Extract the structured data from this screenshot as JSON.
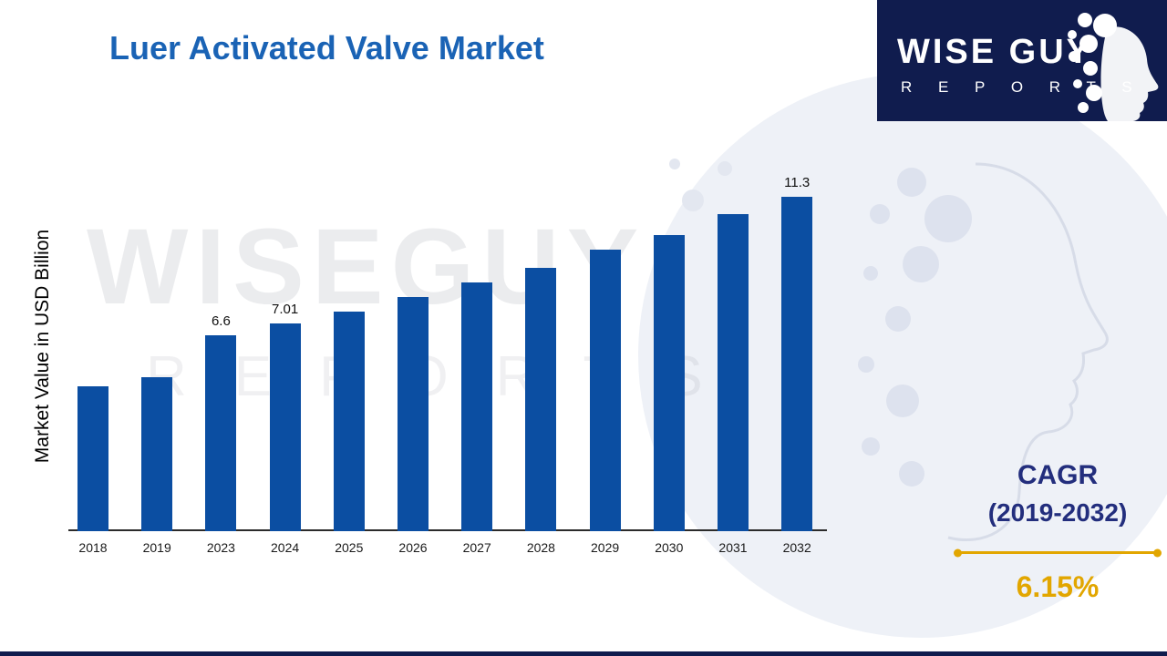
{
  "title": "Luer Activated Valve Market",
  "logo": {
    "line1": "WISE GUY",
    "line2": "R E P O R T S"
  },
  "watermark": {
    "line1": "WISEGUY",
    "line2": "REPORTS"
  },
  "cagr": {
    "heading": "CAGR",
    "range": "(2019-2032)",
    "value": "6.15%"
  },
  "colors": {
    "bar": "#0b4ea2",
    "title_blue": "#1a63b5",
    "navy": "#101c4e",
    "gold": "#e2a600"
  },
  "chart_data": {
    "type": "bar",
    "title": "Luer Activated Valve Market",
    "xlabel": "",
    "ylabel": "Market Value in USD Billion",
    "categories": [
      "2018",
      "2019",
      "2023",
      "2024",
      "2025",
      "2026",
      "2027",
      "2028",
      "2029",
      "2030",
      "2031",
      "2032"
    ],
    "values": [
      4.9,
      5.2,
      6.6,
      7.01,
      7.4,
      7.9,
      8.4,
      8.9,
      9.5,
      10.0,
      10.7,
      11.3
    ],
    "data_labels": [
      "",
      "",
      "6.6",
      "7.01",
      "",
      "",
      "",
      "",
      "",
      "",
      "",
      "11.3"
    ],
    "ylim": [
      0,
      12.4
    ],
    "grid": false,
    "legend": "none",
    "bar_color": "#0b4ea2"
  }
}
